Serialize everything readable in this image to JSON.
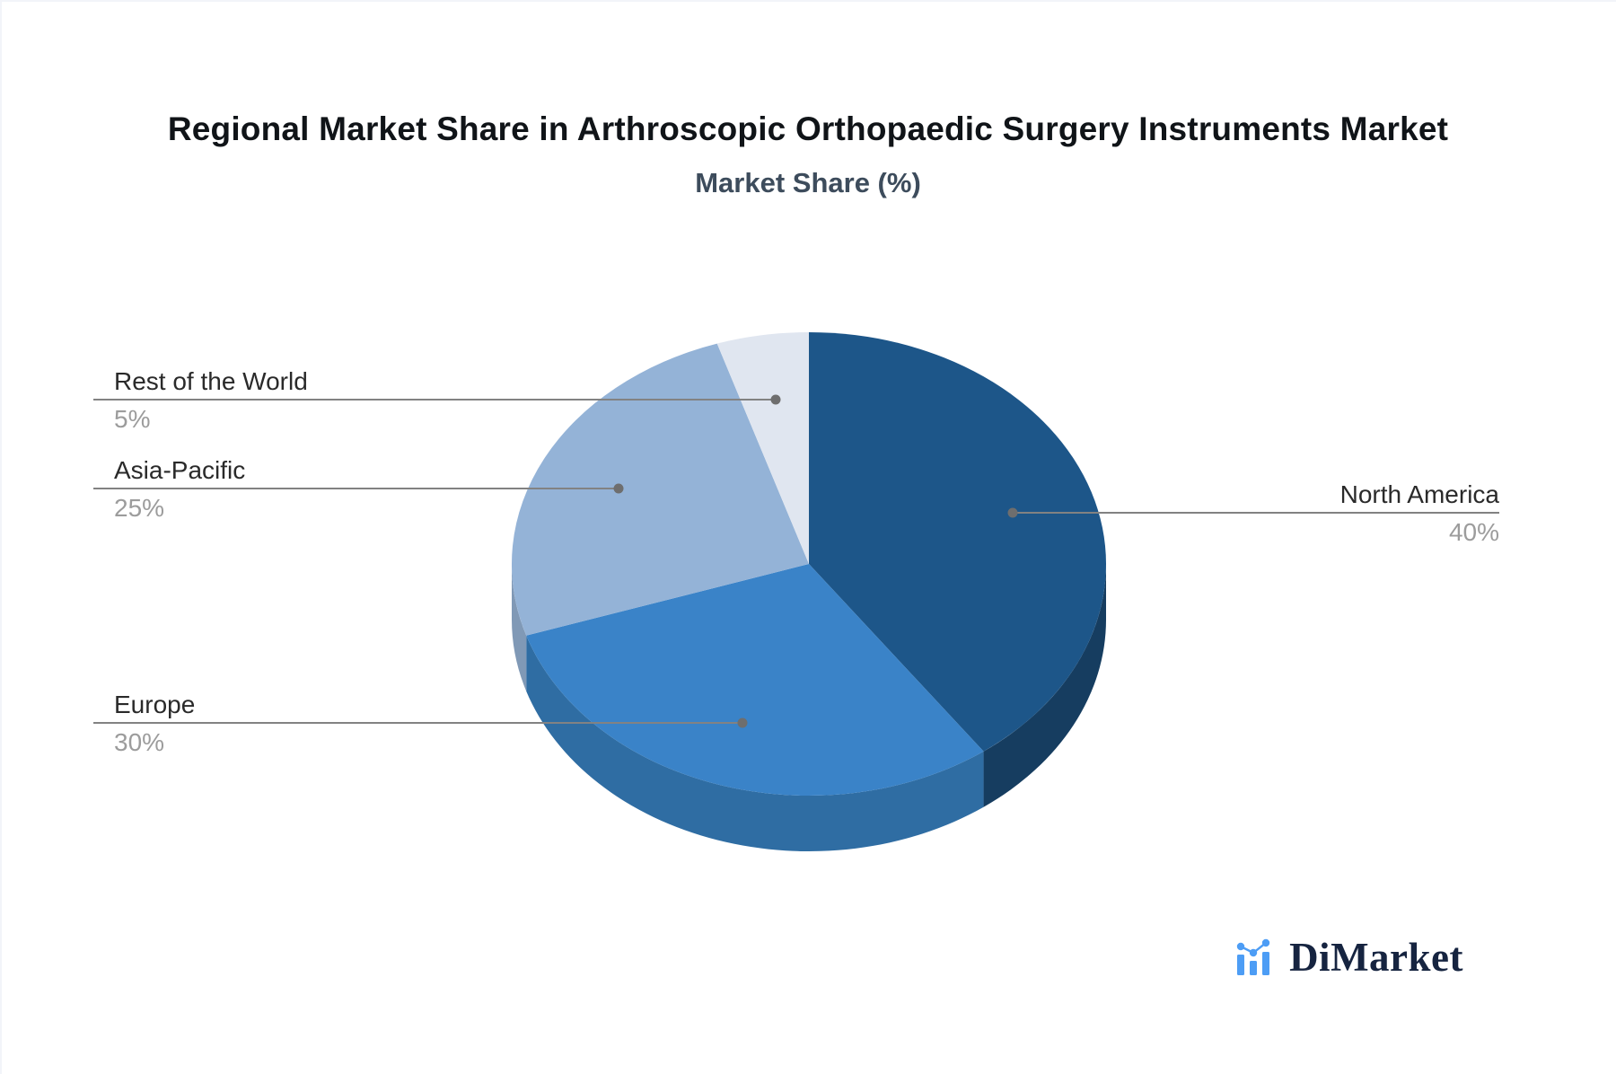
{
  "page": {
    "title": "Regional Market Share in Arthroscopic Orthopaedic Surgery Instruments Market",
    "subtitle": "Market Share (%)"
  },
  "chart_data": {
    "type": "pie",
    "style": "3d",
    "title": "Regional Market Share in Arthroscopic Orthopaedic Surgery Instruments Market",
    "subtitle": "Market Share (%)",
    "unit": "%",
    "start_angle_deg": 0,
    "direction": "clockwise",
    "slices": [
      {
        "label": "North America",
        "value": 40,
        "display": "40%",
        "color": "#1d5689",
        "side_color": "#163d60"
      },
      {
        "label": "Europe",
        "value": 30,
        "display": "30%",
        "color": "#3a83c8",
        "side_color": "#2f6da3"
      },
      {
        "label": "Asia-Pacific",
        "value": 25,
        "display": "25%",
        "color": "#94b3d7",
        "side_color": "#8099b6"
      },
      {
        "label": "Rest of the World",
        "value": 5,
        "display": "5%",
        "color": "#e0e6f0",
        "side_color": "#c6cfdd"
      }
    ],
    "legend_position": "none",
    "label_text_color": "#2a2a2a",
    "percent_text_color": "#9c9c9c",
    "leader_line_color": "#828282",
    "leader_dot_color": "#6e6e6e"
  },
  "logo": {
    "text": "DiMarket",
    "icon": "bar-line-chart-icon",
    "icon_color": "#4d9df5",
    "text_color": "#162440"
  }
}
